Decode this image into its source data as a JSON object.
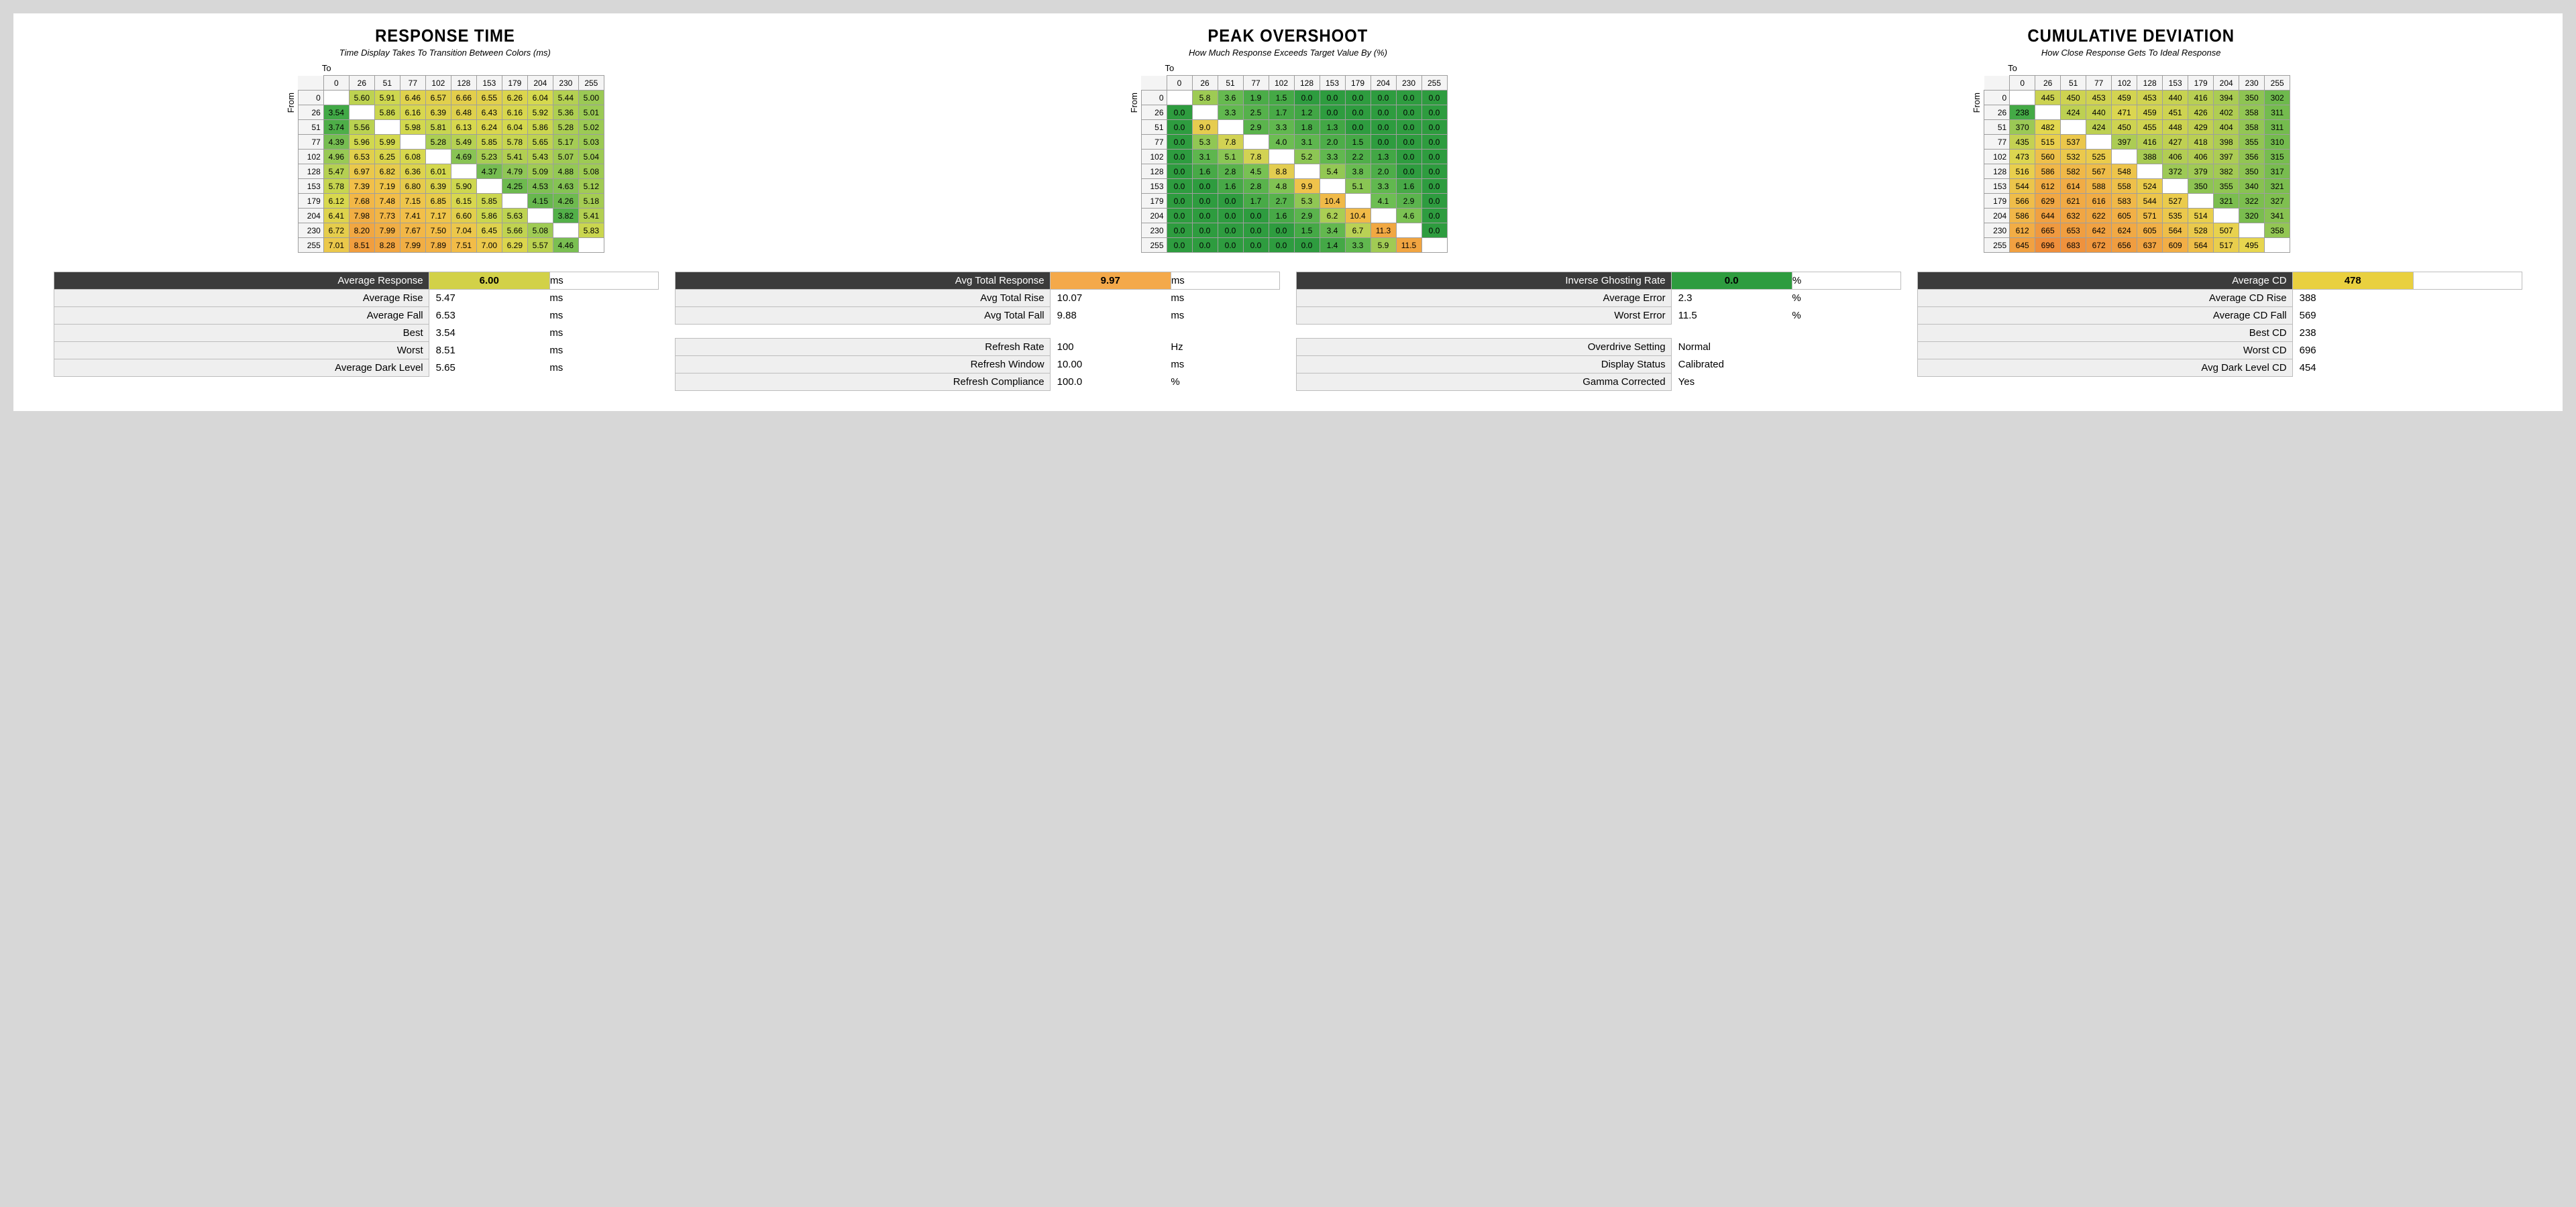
{
  "page_bg": "#d7d7d7",
  "panel_bg": "#ffffff",
  "grid_border": "#9e9e9e",
  "header_bg": "#f4f4f4",
  "title_fontsize": 26,
  "subtitle_fontsize": 13,
  "cell_fontsize": 12,
  "stat_fontsize": 15,
  "axis_labels": {
    "from": "From",
    "to": "To"
  },
  "levels": [
    "0",
    "26",
    "51",
    "77",
    "102",
    "128",
    "153",
    "179",
    "204",
    "230",
    "255"
  ],
  "response_time": {
    "title": "RESPONSE TIME",
    "subtitle": "Time Display Takes To Transition Between Colors (ms)",
    "decimals": 2,
    "color_scale": {
      "min": 3.5,
      "max": 8.6,
      "stops": [
        {
          "t": 0.0,
          "c": "#3fa845"
        },
        {
          "t": 0.25,
          "c": "#8ec656"
        },
        {
          "t": 0.5,
          "c": "#d6d94e"
        },
        {
          "t": 0.75,
          "c": "#f2c24a"
        },
        {
          "t": 1.0,
          "c": "#f19b3e"
        }
      ]
    },
    "rows": [
      [
        null,
        5.6,
        5.91,
        6.46,
        6.57,
        6.66,
        6.55,
        6.26,
        6.04,
        5.44,
        5.0
      ],
      [
        3.54,
        null,
        5.86,
        6.16,
        6.39,
        6.48,
        6.43,
        6.16,
        5.92,
        5.36,
        5.01
      ],
      [
        3.74,
        5.56,
        null,
        5.98,
        5.81,
        6.13,
        6.24,
        6.04,
        5.86,
        5.28,
        5.02
      ],
      [
        4.39,
        5.96,
        5.99,
        null,
        5.28,
        5.49,
        5.85,
        5.78,
        5.65,
        5.17,
        5.03
      ],
      [
        4.96,
        6.53,
        6.25,
        6.08,
        null,
        4.69,
        5.23,
        5.41,
        5.43,
        5.07,
        5.04
      ],
      [
        5.47,
        6.97,
        6.82,
        6.36,
        6.01,
        null,
        4.37,
        4.79,
        5.09,
        4.88,
        5.08
      ],
      [
        5.78,
        7.39,
        7.19,
        6.8,
        6.39,
        5.9,
        null,
        4.25,
        4.53,
        4.63,
        5.12
      ],
      [
        6.12,
        7.68,
        7.48,
        7.15,
        6.85,
        6.15,
        5.85,
        null,
        4.15,
        4.26,
        5.18
      ],
      [
        6.41,
        7.98,
        7.73,
        7.41,
        7.17,
        6.6,
        5.86,
        5.63,
        null,
        3.82,
        5.41
      ],
      [
        6.72,
        8.2,
        7.99,
        7.67,
        7.5,
        7.04,
        6.45,
        5.66,
        5.08,
        null,
        5.83
      ],
      [
        7.01,
        8.51,
        8.28,
        7.99,
        7.89,
        7.51,
        7.0,
        6.29,
        5.57,
        4.46,
        null
      ]
    ]
  },
  "peak_overshoot": {
    "title": "PEAK OVERSHOOT",
    "subtitle": "How Much Response Exceeds Target Value By (%)",
    "decimals": 1,
    "color_scale": {
      "min": 0.0,
      "max": 12.0,
      "stops": [
        {
          "t": 0.0,
          "c": "#2e9c3f"
        },
        {
          "t": 0.35,
          "c": "#6fbf53"
        },
        {
          "t": 0.6,
          "c": "#c8d555"
        },
        {
          "t": 0.8,
          "c": "#f0c94d"
        },
        {
          "t": 1.0,
          "c": "#f19b3e"
        }
      ]
    },
    "rows": [
      [
        null,
        5.8,
        3.6,
        1.9,
        1.5,
        0.0,
        0.0,
        0.0,
        0.0,
        0.0,
        0.0
      ],
      [
        0.0,
        null,
        3.3,
        2.5,
        1.7,
        1.2,
        0.0,
        0.0,
        0.0,
        0.0,
        0.0
      ],
      [
        0.0,
        9.0,
        null,
        2.9,
        3.3,
        1.8,
        1.3,
        0.0,
        0.0,
        0.0,
        0.0
      ],
      [
        0.0,
        5.3,
        7.8,
        null,
        4.0,
        3.1,
        2.0,
        1.5,
        0.0,
        0.0,
        0.0
      ],
      [
        0.0,
        3.1,
        5.1,
        7.8,
        null,
        5.2,
        3.3,
        2.2,
        1.3,
        0.0,
        0.0
      ],
      [
        0.0,
        1.6,
        2.8,
        4.5,
        8.8,
        null,
        5.4,
        3.8,
        2.0,
        0.0,
        0.0
      ],
      [
        0.0,
        0.0,
        1.6,
        2.8,
        4.8,
        9.9,
        null,
        5.1,
        3.3,
        1.6,
        0.0
      ],
      [
        0.0,
        0.0,
        0.0,
        1.7,
        2.7,
        5.3,
        10.4,
        null,
        4.1,
        2.9,
        0.0
      ],
      [
        0.0,
        0.0,
        0.0,
        0.0,
        1.6,
        2.9,
        6.2,
        10.4,
        null,
        4.6,
        0.0
      ],
      [
        0.0,
        0.0,
        0.0,
        0.0,
        0.0,
        1.5,
        3.4,
        6.7,
        11.3,
        null,
        0.0
      ],
      [
        0.0,
        0.0,
        0.0,
        0.0,
        0.0,
        0.0,
        1.4,
        3.3,
        5.9,
        11.5,
        null
      ]
    ]
  },
  "cumulative_deviation": {
    "title": "CUMULATIVE DEVIATION",
    "subtitle": "How Close Response Gets To Ideal Response",
    "decimals": 0,
    "color_scale": {
      "min": 230,
      "max": 700,
      "stops": [
        {
          "t": 0.0,
          "c": "#3fa845"
        },
        {
          "t": 0.3,
          "c": "#9cc955"
        },
        {
          "t": 0.55,
          "c": "#e6d84f"
        },
        {
          "t": 0.78,
          "c": "#f2b347"
        },
        {
          "t": 1.0,
          "c": "#ef8c3b"
        }
      ]
    },
    "rows": [
      [
        null,
        445,
        450,
        453,
        459,
        453,
        440,
        416,
        394,
        350,
        302
      ],
      [
        238,
        null,
        424,
        440,
        471,
        459,
        451,
        426,
        402,
        358,
        311
      ],
      [
        370,
        482,
        null,
        424,
        450,
        455,
        448,
        429,
        404,
        358,
        311
      ],
      [
        435,
        515,
        537,
        null,
        397,
        416,
        427,
        418,
        398,
        355,
        310
      ],
      [
        473,
        560,
        532,
        525,
        null,
        388,
        406,
        406,
        397,
        356,
        315
      ],
      [
        516,
        586,
        582,
        567,
        548,
        null,
        372,
        379,
        382,
        350,
        317
      ],
      [
        544,
        612,
        614,
        588,
        558,
        524,
        null,
        350,
        355,
        340,
        321
      ],
      [
        566,
        629,
        621,
        616,
        583,
        544,
        527,
        null,
        321,
        322,
        327
      ],
      [
        586,
        644,
        632,
        622,
        605,
        571,
        535,
        514,
        null,
        320,
        341
      ],
      [
        612,
        665,
        653,
        642,
        624,
        605,
        564,
        528,
        507,
        null,
        358
      ],
      [
        645,
        696,
        683,
        672,
        656,
        637,
        609,
        564,
        517,
        495,
        null
      ]
    ]
  },
  "stats": {
    "col1": [
      {
        "label": "Average Response",
        "value": "6.00",
        "unit": "ms",
        "highlight": true,
        "val_bg": "#d2d148"
      },
      {
        "label": "Average Rise",
        "value": "5.47",
        "unit": "ms"
      },
      {
        "label": "Average Fall",
        "value": "6.53",
        "unit": "ms"
      },
      {
        "label": "Best",
        "value": "3.54",
        "unit": "ms"
      },
      {
        "label": "Worst",
        "value": "8.51",
        "unit": "ms"
      },
      {
        "label": "Average Dark Level",
        "value": "5.65",
        "unit": "ms"
      }
    ],
    "col2a": [
      {
        "label": "Avg Total Response",
        "value": "9.97",
        "unit": "ms",
        "highlight": true,
        "val_bg": "#f4a94a"
      },
      {
        "label": "Avg Total Rise",
        "value": "10.07",
        "unit": "ms"
      },
      {
        "label": "Avg Total Fall",
        "value": "9.88",
        "unit": "ms"
      }
    ],
    "col2b": [
      {
        "label": "Refresh Rate",
        "value": "100",
        "unit": "Hz"
      },
      {
        "label": "Refresh Window",
        "value": "10.00",
        "unit": "ms"
      },
      {
        "label": "Refresh Compliance",
        "value": "100.0",
        "unit": "%"
      }
    ],
    "col3a": [
      {
        "label": "Inverse Ghosting Rate",
        "value": "0.0",
        "unit": "%",
        "highlight": true,
        "val_bg": "#2e9c3f"
      },
      {
        "label": "Average Error",
        "value": "2.3",
        "unit": "%"
      },
      {
        "label": "Worst Error",
        "value": "11.5",
        "unit": "%"
      }
    ],
    "col3b": [
      {
        "label": "Overdrive Setting",
        "value": "Normal",
        "unit": ""
      },
      {
        "label": "Display Status",
        "value": "Calibrated",
        "unit": ""
      },
      {
        "label": "Gamma Corrected",
        "value": "Yes",
        "unit": ""
      }
    ],
    "col4": [
      {
        "label": "Average CD",
        "value": "478",
        "unit": "",
        "highlight": true,
        "val_bg": "#e9d03f"
      },
      {
        "label": "Average CD Rise",
        "value": "388",
        "unit": ""
      },
      {
        "label": "Average CD Fall",
        "value": "569",
        "unit": ""
      },
      {
        "label": "Best CD",
        "value": "238",
        "unit": ""
      },
      {
        "label": "Worst CD",
        "value": "696",
        "unit": ""
      },
      {
        "label": "Avg Dark Level CD",
        "value": "454",
        "unit": ""
      }
    ]
  }
}
